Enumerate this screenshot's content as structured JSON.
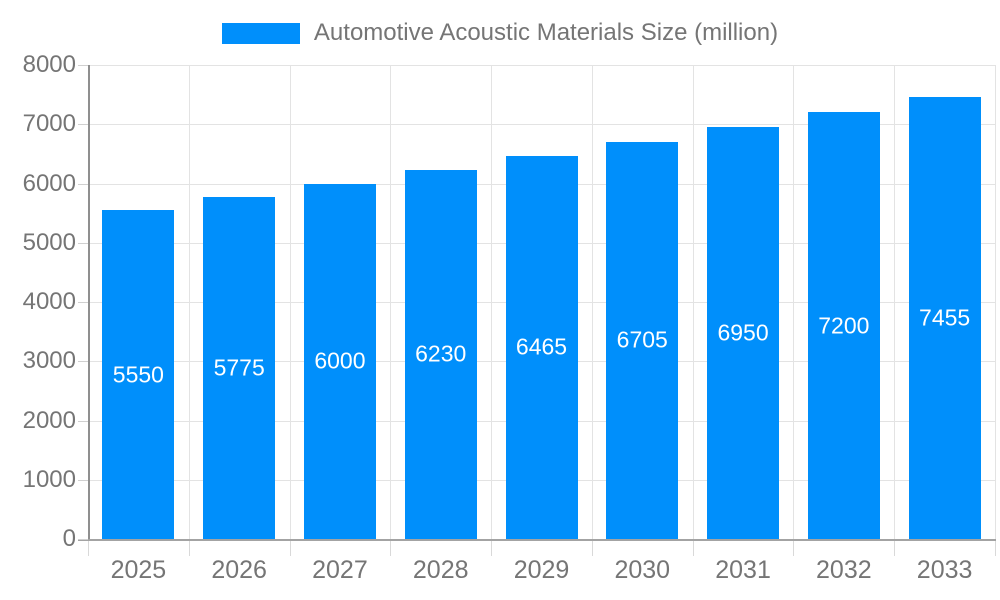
{
  "chart_data": {
    "type": "bar",
    "title": "Automotive Acoustic Materials Size (million)",
    "legend": "Automotive Acoustic Materials Size (million)",
    "legend_position": "top",
    "categories": [
      "2025",
      "2026",
      "2027",
      "2028",
      "2029",
      "2030",
      "2031",
      "2032",
      "2033"
    ],
    "values": [
      5550,
      5775,
      6000,
      6230,
      6465,
      6705,
      6950,
      7200,
      7455
    ],
    "xlabel": "",
    "ylabel": "",
    "ylim": [
      0,
      8000
    ],
    "ytick_step": 1000,
    "grid": true,
    "bar_color": "#008FFB",
    "value_label_color": "#ffffff",
    "axis_label_color": "#757575"
  }
}
